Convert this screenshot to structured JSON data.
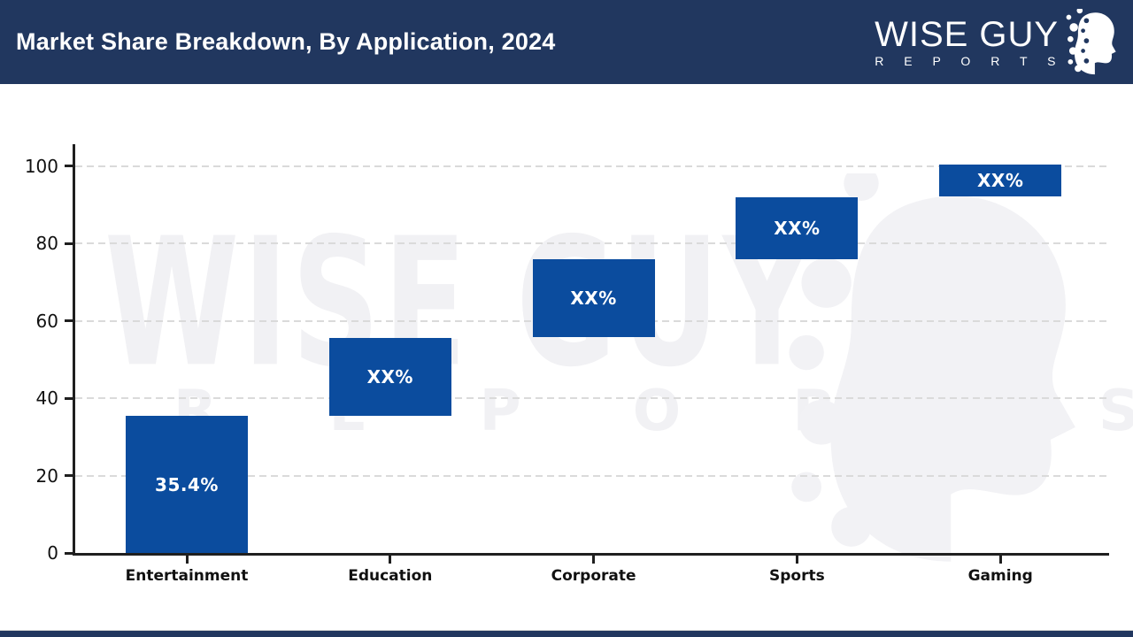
{
  "header": {
    "title": "Market Share Breakdown, By Application, 2024",
    "bg_color": "#21375f",
    "logo": {
      "line1": "WISE GUY",
      "line2": "R E P O R T S"
    }
  },
  "watermark": {
    "line1": "WISE GUY",
    "line2": "R E P O R T S"
  },
  "chart_data": {
    "type": "bar",
    "subtype": "waterfall",
    "title": "Market Share Breakdown, By Application, 2024",
    "categories": [
      "Entertainment",
      "Education",
      "Corporate",
      "Sports",
      "Gaming"
    ],
    "segments": [
      {
        "category": "Entertainment",
        "start": 0,
        "end": 35.4,
        "label": "35.4%"
      },
      {
        "category": "Education",
        "start": 35.4,
        "end": 55.5,
        "label": "XX%"
      },
      {
        "category": "Corporate",
        "start": 55.7,
        "end": 75.9,
        "label": "XX%"
      },
      {
        "category": "Sports",
        "start": 75.9,
        "end": 91.8,
        "label": "XX%"
      },
      {
        "category": "Gaming",
        "start": 92.1,
        "end": 100.4,
        "label": "XX%"
      }
    ],
    "yticks": [
      0,
      20,
      40,
      60,
      80,
      100
    ],
    "ylim": [
      0,
      105.6
    ],
    "xlabel": "",
    "ylabel": "",
    "bar_color": "#0b4c9e",
    "grid": "horizontal-dashed",
    "legend": "none"
  }
}
